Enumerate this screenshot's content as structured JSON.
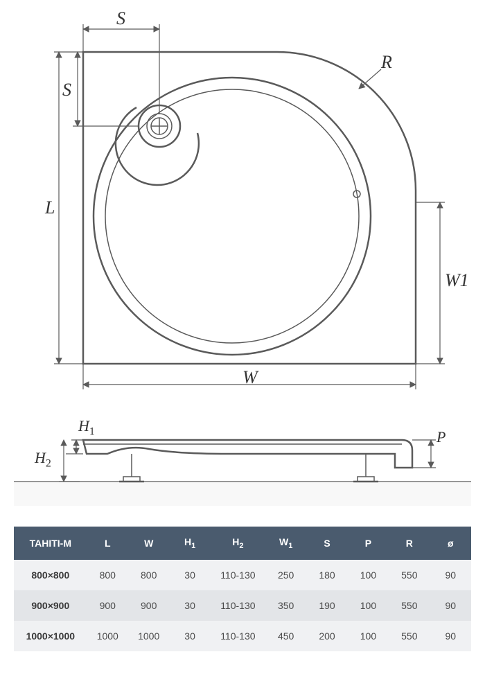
{
  "diagram": {
    "type": "technical-drawing",
    "colors": {
      "stroke": "#5a5a5a",
      "label": "#333333",
      "floor": "#f8f8f8",
      "background": "#ffffff"
    },
    "stroke_widths": {
      "outline": 2.5,
      "thin": 1.5,
      "dim": 1.2
    },
    "label_font": {
      "family": "Times New Roman",
      "style": "italic",
      "size_pt": 20
    },
    "top_view": {
      "labels": {
        "L": "L",
        "W": "W",
        "W1": "W1",
        "S_top": "S",
        "S_left": "S",
        "R": "R"
      }
    },
    "side_view": {
      "labels": {
        "H1": "H1",
        "H2": "H2",
        "P": "P"
      }
    }
  },
  "table": {
    "type": "table",
    "header_bg": "#4a5b6e",
    "header_color": "#ffffff",
    "row_bg_odd": "#f0f1f3",
    "row_bg_even": "#e3e5e8",
    "text_color": "#4a4a4a",
    "font_size_pt": 10,
    "columns": [
      "TAHITI-M",
      "L",
      "W",
      "H1",
      "H2",
      "W1",
      "S",
      "P",
      "R",
      "ø"
    ],
    "rows": [
      [
        "800×800",
        "800",
        "800",
        "30",
        "110-130",
        "250",
        "180",
        "100",
        "550",
        "90"
      ],
      [
        "900×900",
        "900",
        "900",
        "30",
        "110-130",
        "350",
        "190",
        "100",
        "550",
        "90"
      ],
      [
        "1000×1000",
        "1000",
        "1000",
        "30",
        "110-130",
        "450",
        "200",
        "100",
        "550",
        "90"
      ]
    ],
    "col_widths_pct": [
      16,
      9,
      9,
      9,
      12,
      9,
      9,
      9,
      9,
      9
    ]
  }
}
